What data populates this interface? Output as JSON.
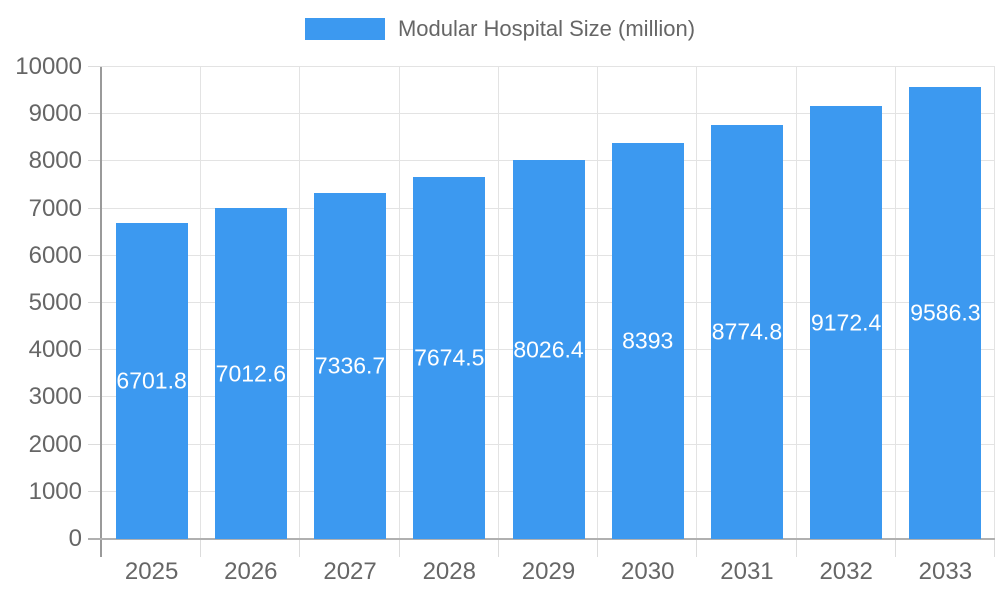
{
  "legend": {
    "label": "Modular Hospital Size (million)"
  },
  "chart_data": {
    "type": "bar",
    "title": "",
    "categories": [
      "2025",
      "2026",
      "2027",
      "2028",
      "2029",
      "2030",
      "2031",
      "2032",
      "2033"
    ],
    "series": [
      {
        "name": "Modular Hospital Size (million)",
        "values": [
          6701.8,
          7012.6,
          7336.7,
          7674.5,
          8026.4,
          8393,
          8774.8,
          9172.4,
          9586.3
        ],
        "display_values": [
          "6701.8",
          "7012.6",
          "7336.7",
          "7674.5",
          "8026.4",
          "8393",
          "8774.8",
          "9172.4",
          "9586.3"
        ]
      }
    ],
    "xlabel": "",
    "ylabel": "",
    "ylim": [
      0,
      10000
    ],
    "ytick_step": 1000,
    "ytick_labels": [
      "0",
      "1000",
      "2000",
      "3000",
      "4000",
      "5000",
      "6000",
      "7000",
      "8000",
      "9000",
      "10000"
    ],
    "grid": true,
    "legend_position": "top",
    "colors": {
      "bar": "#3C99F0",
      "value_label": "#ffffff",
      "axis_text": "#666666",
      "gridline": "#e3e3e3",
      "tick_mark": "#dcdcdc",
      "y_axis_line": "#9a9a9a",
      "x_axis_line": "#b0b0b0",
      "background": "#ffffff"
    }
  }
}
